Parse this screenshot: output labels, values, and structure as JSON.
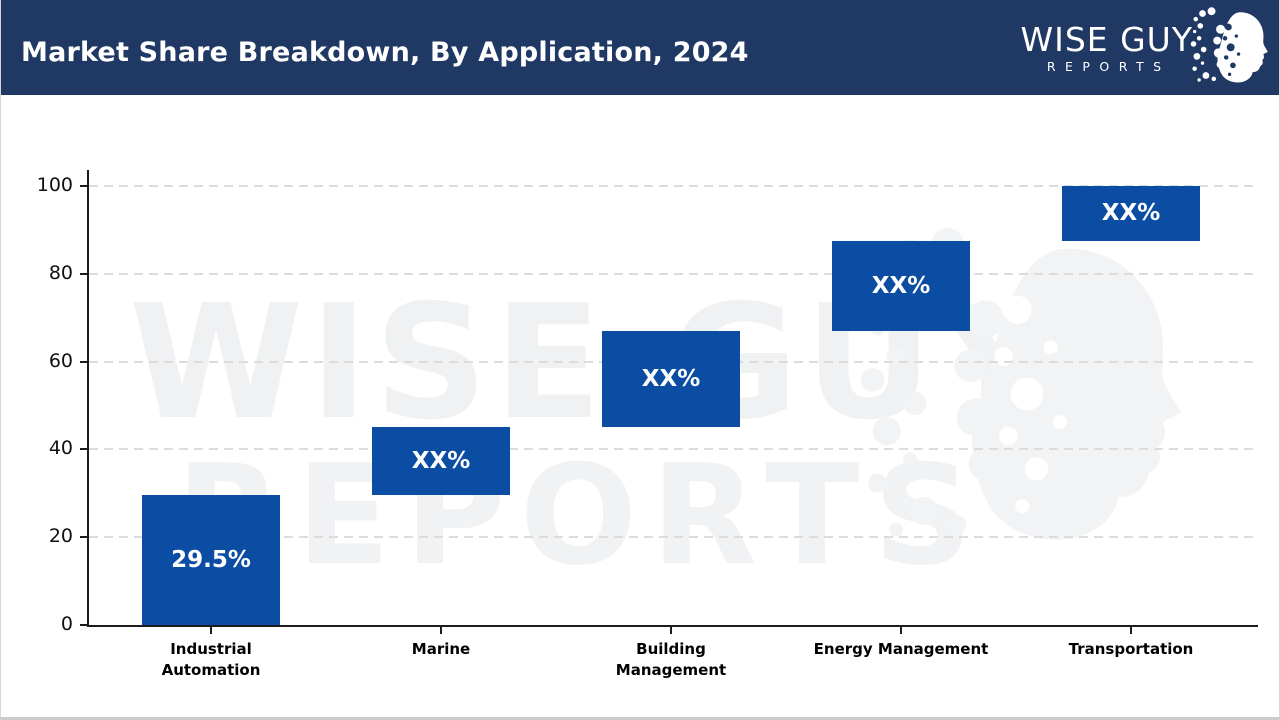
{
  "header": {
    "title": "Market Share Breakdown, By Application, 2024",
    "logo": {
      "name": "WISE GUY",
      "sub": "REPORTS"
    }
  },
  "watermark": {
    "name": "WISE GUY",
    "sub": "REPORTS"
  },
  "chart_data": {
    "type": "bar",
    "subtype": "waterfall-floating-bars",
    "title": "Market Share Breakdown, By Application, 2024",
    "categories": [
      "Industrial\nAutomation",
      "Marine",
      "Building\nManagement",
      "Energy Management",
      "Transportation"
    ],
    "segments": [
      {
        "category": "Industrial Automation",
        "start": 0,
        "end": 29.5,
        "value": 29.5,
        "label": "29.5%"
      },
      {
        "category": "Marine",
        "start": 29.5,
        "end": 45,
        "value": 15.5,
        "label": "XX%"
      },
      {
        "category": "Building Management",
        "start": 45,
        "end": 67,
        "value": 22,
        "label": "XX%"
      },
      {
        "category": "Energy Management",
        "start": 67,
        "end": 87.5,
        "value": 20.5,
        "label": "XX%"
      },
      {
        "category": "Transportation",
        "start": 87.5,
        "end": 100,
        "value": 12.5,
        "label": "XX%"
      }
    ],
    "xlabel": "",
    "ylabel": "",
    "ylim": [
      0,
      100
    ],
    "yticks": [
      0,
      20,
      40,
      60,
      80,
      100
    ],
    "grid": "horizontal-dashed",
    "legend": "none",
    "bar_color": "#0b4da2",
    "bar_label_color": "#ffffff",
    "header_color": "#203864",
    "axis_color": "#1c1c1c"
  }
}
